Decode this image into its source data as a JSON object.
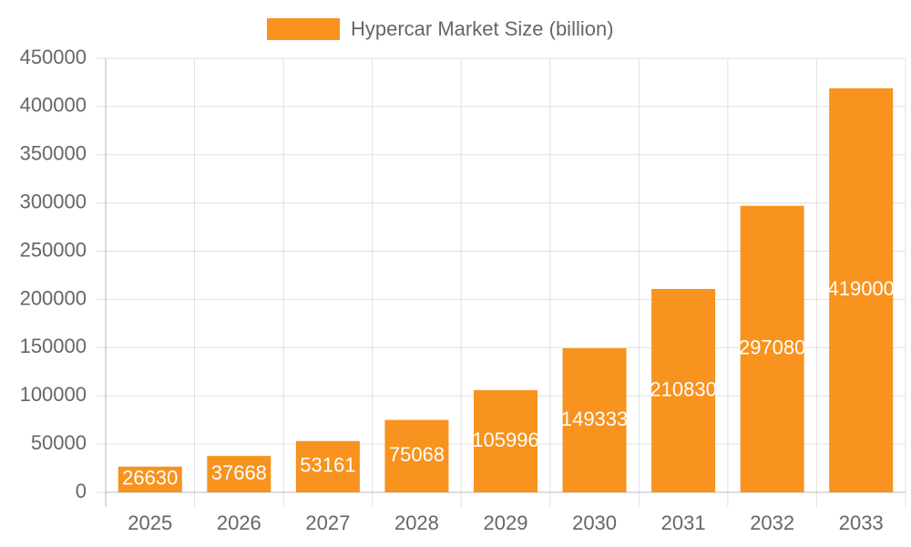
{
  "chart_data": {
    "type": "bar",
    "categories": [
      "2025",
      "2026",
      "2027",
      "2028",
      "2029",
      "2030",
      "2031",
      "2032",
      "2033"
    ],
    "series": [
      {
        "name": "Hypercar Market Size (billion)",
        "color": "#f7931e",
        "values": [
          26630,
          37668,
          53161,
          75068,
          105996,
          149333,
          210830,
          297080,
          419000
        ]
      }
    ],
    "ylim": [
      0,
      450000
    ],
    "yticks": [
      0,
      50000,
      100000,
      150000,
      200000,
      250000,
      300000,
      350000,
      400000,
      450000
    ],
    "grid": true,
    "legend": "top"
  }
}
